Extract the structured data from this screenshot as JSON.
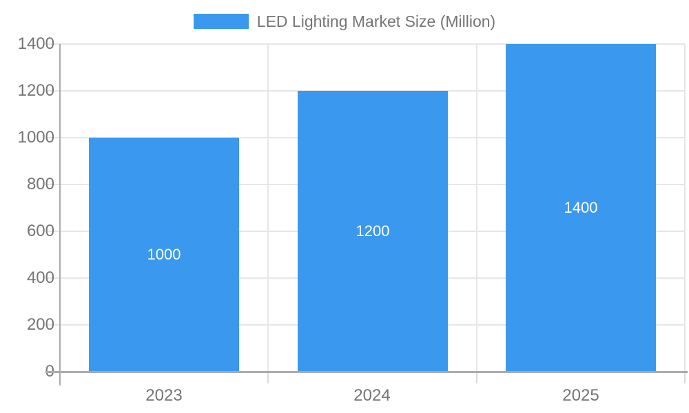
{
  "legend": {
    "label": "LED Lighting Market Size (Million)"
  },
  "chart_data": {
    "type": "bar",
    "title": "LED Lighting Market Size (Million)",
    "series_name": "LED Lighting Market Size (Million)",
    "categories": [
      "2023",
      "2024",
      "2025"
    ],
    "values": [
      1000,
      1200,
      1400
    ],
    "data_labels": [
      "1000",
      "1200",
      "1400"
    ],
    "xlabel": "",
    "ylabel": "",
    "ylim": [
      0,
      1400
    ],
    "yticks": [
      0,
      200,
      400,
      600,
      800,
      1000,
      1200,
      1400
    ],
    "grid": true,
    "legend_position": "top-center",
    "colors": {
      "bar": "#3A99EF",
      "axis_text": "#757575",
      "legend_text": "#757575",
      "data_label_text": "#FFFFFF",
      "gridline": "#E6E6E6",
      "axis_line": "#ABABAB",
      "minor_tick": "#D9D9D9",
      "background": "#FFFFFF"
    }
  }
}
